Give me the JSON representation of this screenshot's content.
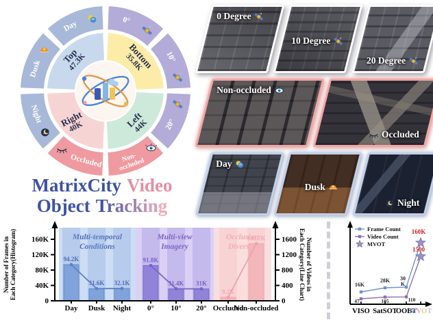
{
  "title": {
    "line1": [
      {
        "text": "MatrixCity",
        "color": "#3f51a3"
      },
      {
        "text": "Video",
        "color": "#e291a2"
      }
    ],
    "line2": [
      {
        "text": "Object",
        "color": "#3f51a3"
      },
      {
        "text": "Tracking",
        "color": "#d88a9c",
        "gradient": [
          "#4454a4",
          "#f2aab6"
        ]
      }
    ]
  },
  "donut": {
    "outer_ring": [
      {
        "label": "Day",
        "icon": "day-icon",
        "color": "#a8b8d8"
      },
      {
        "label": "0°",
        "icon": "satellite-icon",
        "color": "#b3abd8"
      },
      {
        "label": "10°",
        "icon": "satellite-icon",
        "color": "#b3abd8"
      },
      {
        "label": "20°",
        "icon": "satellite-icon",
        "color": "#b3abd8"
      },
      {
        "label": "Non-occluded",
        "icon": "eye-icon",
        "color": "#ef9aa0"
      },
      {
        "label": "Occluded",
        "icon": "eye-slash-icon",
        "color": "#ef9aa0"
      },
      {
        "label": "Night",
        "icon": "moon-icon",
        "color": "#a8b8d8"
      },
      {
        "label": "Dusk",
        "icon": "dusk-icon",
        "color": "#a8b8d8"
      }
    ],
    "inner_ring": [
      {
        "label": "Top",
        "value": "47.3K",
        "color": "#c8d9ee"
      },
      {
        "label": "Bottom",
        "value": "35.8K",
        "color": "#fceca8"
      },
      {
        "label": "Left",
        "value": "44K",
        "color": "#cde9da"
      },
      {
        "label": "Right",
        "value": "40K",
        "color": "#f7d4d4"
      }
    ]
  },
  "tiles": {
    "row_view": [
      {
        "label": "0 Degree",
        "icon": "satellite-icon"
      },
      {
        "label": "10 Degree",
        "icon": "satellite-icon"
      },
      {
        "label": "20 Degree",
        "icon": "satellite-icon"
      }
    ],
    "row_occlusion": [
      {
        "label": "Non-occluded",
        "icon": "eye-icon"
      },
      {
        "label": "Occluded",
        "icon": "eye-slash-icon"
      }
    ],
    "row_time": [
      {
        "label": "Day",
        "icon": "day-icon"
      },
      {
        "label": "Dusk",
        "icon": "dusk-icon"
      },
      {
        "label": "Night",
        "icon": "moon-icon"
      }
    ]
  },
  "chart_data": [
    {
      "type": "bar+line",
      "categories": [
        "Day",
        "Dusk",
        "Night",
        "0°",
        "10°",
        "20°",
        "Occluded",
        "Non-occluded"
      ],
      "values_frames": [
        94200,
        31600,
        32100,
        91800,
        31400,
        31000,
        9200,
        148700
      ],
      "bar_labels": [
        "94.2K",
        "31.6K",
        "32.1K",
        "91.8K",
        "31.4K",
        "31K",
        "9.2K",
        "148.7K"
      ],
      "ylabel_left_lines": [
        "Number of Frames in",
        "Each Category(Histogram)"
      ],
      "ylabel_right_lines": [
        "Number of Videos in",
        "Each Category(Line Chart)"
      ],
      "yticks_left": [
        "0",
        "40K",
        "80K",
        "120K",
        "160K"
      ],
      "yticks_right": [
        "0",
        "400",
        "800",
        "1200",
        "1600"
      ],
      "ylim_left": [
        0,
        160000
      ],
      "ylim_right": [
        0,
        1600
      ],
      "sections": [
        {
          "label_line1": "Multi-temporal",
          "label_line2": "Conditions",
          "color": "#4f6cb8",
          "bg": "#cdddf3",
          "bar": "#7fa3da",
          "line": "#5c83c2",
          "from": 0,
          "to": 3
        },
        {
          "label_line1": "Multi-view",
          "label_line2": "Imagery",
          "color": "#7a5fc4",
          "bg": "#d9d0f4",
          "bar": "#9083d8",
          "line": "#7465c6",
          "from": 3,
          "to": 6
        },
        {
          "label_line1": "Occlusion",
          "label_line2": "Diversity",
          "color": "#f2a9b2",
          "bg": "#fadede",
          "bar": "#f2b6bb",
          "line": "#eba3a9",
          "from": 6,
          "to": 8
        }
      ]
    },
    {
      "type": "line",
      "categories": [
        "VISO",
        "SatSOT",
        "OOBT",
        "MVOT"
      ],
      "series": [
        {
          "name": "Frame Count",
          "color": "#6f93c8",
          "values": [
            16000,
            28000,
            30000,
            160000
          ],
          "labels": [
            "16K",
            "28K",
            "30K",
            "160K"
          ]
        },
        {
          "name": "Video Count",
          "color": "#8e6fae",
          "values": [
            47,
            105,
            110,
            1500
          ],
          "labels": [
            "47",
            "105",
            "110",
            "1500"
          ]
        }
      ],
      "legend": [
        "Frame Count",
        "Video Count",
        "MVOT"
      ],
      "star_color": "#9a92c6",
      "highlight_color": "#cc1f1f",
      "mvot_letter_colors": [
        "#8ca6cc",
        "#e8a0ac",
        "#e8c890",
        "#c0c8d8"
      ]
    }
  ]
}
